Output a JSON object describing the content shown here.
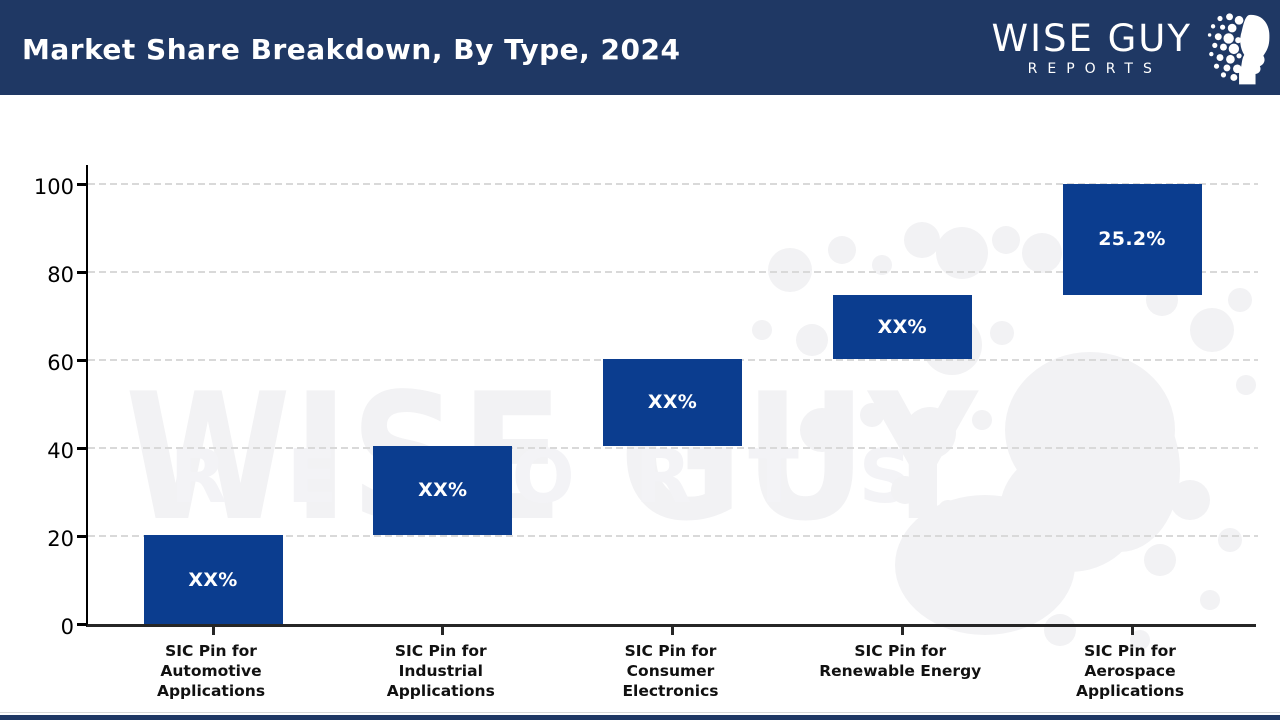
{
  "header": {
    "title": "Market Share Breakdown, By Type, 2024",
    "logo": {
      "name": "WISE GUY",
      "tagline": "REPORTS"
    }
  },
  "watermark": {
    "line1": "WISE GUY",
    "line2": "REPORTS"
  },
  "chart_data": {
    "type": "bar",
    "subtype": "waterfall",
    "title": "Market Share Breakdown, By Type, 2024",
    "categories": [
      "SIC Pin for Automotive Applications",
      "SIC Pin for Industrial Applications",
      "SIC Pin for Consumer Electronics",
      "SIC Pin for Renewable Energy",
      "SIC Pin for Aerospace Applications"
    ],
    "bars": [
      {
        "category_lines": [
          "SIC Pin for",
          "Automotive",
          "Applications"
        ],
        "start": 0,
        "end": 20.2,
        "label": "XX%"
      },
      {
        "category_lines": [
          "SIC Pin for",
          "Industrial",
          "Applications"
        ],
        "start": 20.2,
        "end": 40.5,
        "label": "XX%"
      },
      {
        "category_lines": [
          "SIC Pin for",
          "Consumer",
          "Electronics"
        ],
        "start": 40.5,
        "end": 60.3,
        "label": "XX%"
      },
      {
        "category_lines": [
          "SIC Pin for",
          "Renewable Energy"
        ],
        "start": 60.3,
        "end": 74.8,
        "label": "XX%"
      },
      {
        "category_lines": [
          "SIC Pin for",
          "Aerospace",
          "Applications"
        ],
        "start": 74.8,
        "end": 100,
        "label": "25.2%"
      }
    ],
    "yticks": [
      0,
      20,
      40,
      60,
      80,
      100
    ],
    "ylim": [
      0,
      105
    ],
    "xlabel": "",
    "ylabel": "",
    "grid": "horizontal-dashed",
    "legend": "none",
    "bar_color": "#0b3d8f",
    "value_label_color": "#ffffff",
    "header_color": "#1f3864"
  }
}
